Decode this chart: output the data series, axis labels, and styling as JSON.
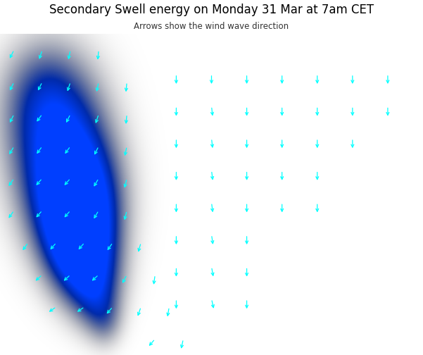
{
  "title": "Secondary Swell energy on Monday 31 Mar at 7am CET",
  "subtitle": "Arrows show the wind wave direction",
  "title_fontsize": 12,
  "subtitle_fontsize": 8.5,
  "fig_width": 6.01,
  "fig_height": 5.04,
  "dpi": 100,
  "lon_min": -25,
  "lon_max": 35,
  "lat_min": 32,
  "lat_max": 72,
  "ocean_color": "#000000",
  "title_bg": "#f0f0f0",
  "blob_params": [
    [
      -19,
      65,
      3.5,
      4,
      0.25
    ],
    [
      -18,
      61,
      4.5,
      5.5,
      0.45
    ],
    [
      -16,
      57,
      4,
      6,
      0.55
    ],
    [
      -15,
      53,
      4,
      5,
      0.7
    ],
    [
      -14,
      50,
      3.5,
      4.5,
      0.85
    ],
    [
      -14,
      47,
      3,
      4,
      0.75
    ],
    [
      -13,
      44,
      3,
      3.5,
      0.6
    ],
    [
      -12,
      41,
      2.5,
      3,
      0.45
    ],
    [
      -11,
      38,
      2,
      2.5,
      0.3
    ],
    [
      -10,
      36,
      1.5,
      2,
      0.18
    ]
  ],
  "arrows": [
    [
      -23,
      70,
      -0.4,
      -0.7
    ],
    [
      -19,
      70,
      -0.3,
      -0.8
    ],
    [
      -15,
      70,
      -0.2,
      -0.8
    ],
    [
      -11,
      70,
      -0.1,
      -0.9
    ],
    [
      -23,
      66,
      -0.4,
      -0.7
    ],
    [
      -19,
      66,
      -0.4,
      -0.7
    ],
    [
      -15,
      66,
      -0.3,
      -0.8
    ],
    [
      -11,
      66,
      -0.2,
      -0.8
    ],
    [
      -7,
      66,
      -0.1,
      -0.9
    ],
    [
      -23,
      62,
      -0.4,
      -0.7
    ],
    [
      -19,
      62,
      -0.5,
      -0.6
    ],
    [
      -15,
      62,
      -0.4,
      -0.7
    ],
    [
      -11,
      62,
      -0.3,
      -0.8
    ],
    [
      -7,
      62,
      -0.1,
      -0.9
    ],
    [
      -23,
      58,
      -0.4,
      -0.6
    ],
    [
      -19,
      58,
      -0.5,
      -0.6
    ],
    [
      -15,
      58,
      -0.5,
      -0.6
    ],
    [
      -11,
      58,
      -0.4,
      -0.7
    ],
    [
      -7,
      58,
      -0.2,
      -0.8
    ],
    [
      -23,
      54,
      -0.4,
      -0.5
    ],
    [
      -19,
      54,
      -0.5,
      -0.5
    ],
    [
      -15,
      54,
      -0.5,
      -0.5
    ],
    [
      -11,
      54,
      -0.4,
      -0.6
    ],
    [
      -7,
      54,
      -0.2,
      -0.7
    ],
    [
      -23,
      50,
      -0.4,
      -0.5
    ],
    [
      -19,
      50,
      -0.5,
      -0.5
    ],
    [
      -15,
      50,
      -0.5,
      -0.5
    ],
    [
      -11,
      50,
      -0.4,
      -0.6
    ],
    [
      -7,
      50,
      -0.2,
      -0.7
    ],
    [
      -21,
      46,
      -0.4,
      -0.5
    ],
    [
      -17,
      46,
      -0.5,
      -0.5
    ],
    [
      -13,
      46,
      -0.5,
      -0.5
    ],
    [
      -9,
      46,
      -0.4,
      -0.5
    ],
    [
      -5,
      46,
      -0.2,
      -0.6
    ],
    [
      -19,
      42,
      -0.5,
      -0.4
    ],
    [
      -15,
      42,
      -0.5,
      -0.4
    ],
    [
      -11,
      42,
      -0.5,
      -0.4
    ],
    [
      -7,
      42,
      -0.3,
      -0.5
    ],
    [
      -3,
      42,
      -0.1,
      -0.6
    ],
    [
      -17,
      38,
      -0.5,
      -0.3
    ],
    [
      -13,
      38,
      -0.5,
      -0.3
    ],
    [
      -9,
      38,
      -0.4,
      -0.4
    ],
    [
      -5,
      38,
      -0.2,
      -0.5
    ],
    [
      -1,
      38,
      -0.1,
      -0.5
    ],
    [
      -3,
      34,
      -0.3,
      -0.3
    ],
    [
      1,
      34,
      -0.1,
      -0.4
    ],
    [
      5,
      67,
      0.0,
      -0.9
    ],
    [
      5,
      63,
      0.1,
      -0.8
    ],
    [
      5,
      59,
      0.1,
      -0.8
    ],
    [
      5,
      55,
      0.1,
      -0.7
    ],
    [
      5,
      51,
      0.1,
      -0.7
    ],
    [
      5,
      47,
      0.1,
      -0.6
    ],
    [
      5,
      43,
      0.1,
      -0.5
    ],
    [
      5,
      39,
      0.1,
      -0.4
    ],
    [
      10,
      67,
      0.0,
      -0.9
    ],
    [
      10,
      63,
      0.0,
      -0.9
    ],
    [
      10,
      59,
      0.0,
      -0.9
    ],
    [
      10,
      55,
      0.0,
      -0.8
    ],
    [
      10,
      51,
      0.0,
      -0.8
    ],
    [
      10,
      47,
      0.0,
      -0.7
    ],
    [
      10,
      43,
      0.0,
      -0.6
    ],
    [
      10,
      39,
      0.0,
      -0.5
    ],
    [
      15,
      67,
      0.0,
      -0.9
    ],
    [
      15,
      63,
      0.0,
      -0.9
    ],
    [
      15,
      59,
      0.0,
      -0.8
    ],
    [
      15,
      55,
      0.0,
      -0.8
    ],
    [
      15,
      51,
      0.0,
      -0.7
    ],
    [
      20,
      67,
      0.0,
      -0.9
    ],
    [
      20,
      63,
      0.0,
      -0.9
    ],
    [
      20,
      59,
      0.0,
      -0.8
    ],
    [
      20,
      55,
      0.0,
      -0.8
    ],
    [
      20,
      51,
      0.0,
      -0.7
    ],
    [
      25,
      67,
      0.0,
      -0.9
    ],
    [
      25,
      63,
      0.0,
      -0.9
    ],
    [
      25,
      59,
      0.0,
      -0.8
    ],
    [
      30,
      67,
      0.0,
      -0.9
    ],
    [
      30,
      63,
      0.0,
      -0.9
    ],
    [
      0,
      67,
      0.0,
      -0.9
    ],
    [
      0,
      63,
      0.0,
      -0.9
    ],
    [
      0,
      59,
      0.0,
      -0.8
    ],
    [
      0,
      55,
      0.0,
      -0.8
    ],
    [
      0,
      51,
      0.0,
      -0.7
    ],
    [
      0,
      47,
      0.0,
      -0.6
    ],
    [
      0,
      43,
      0.0,
      -0.5
    ],
    [
      0,
      39,
      0.0,
      -0.5
    ]
  ]
}
